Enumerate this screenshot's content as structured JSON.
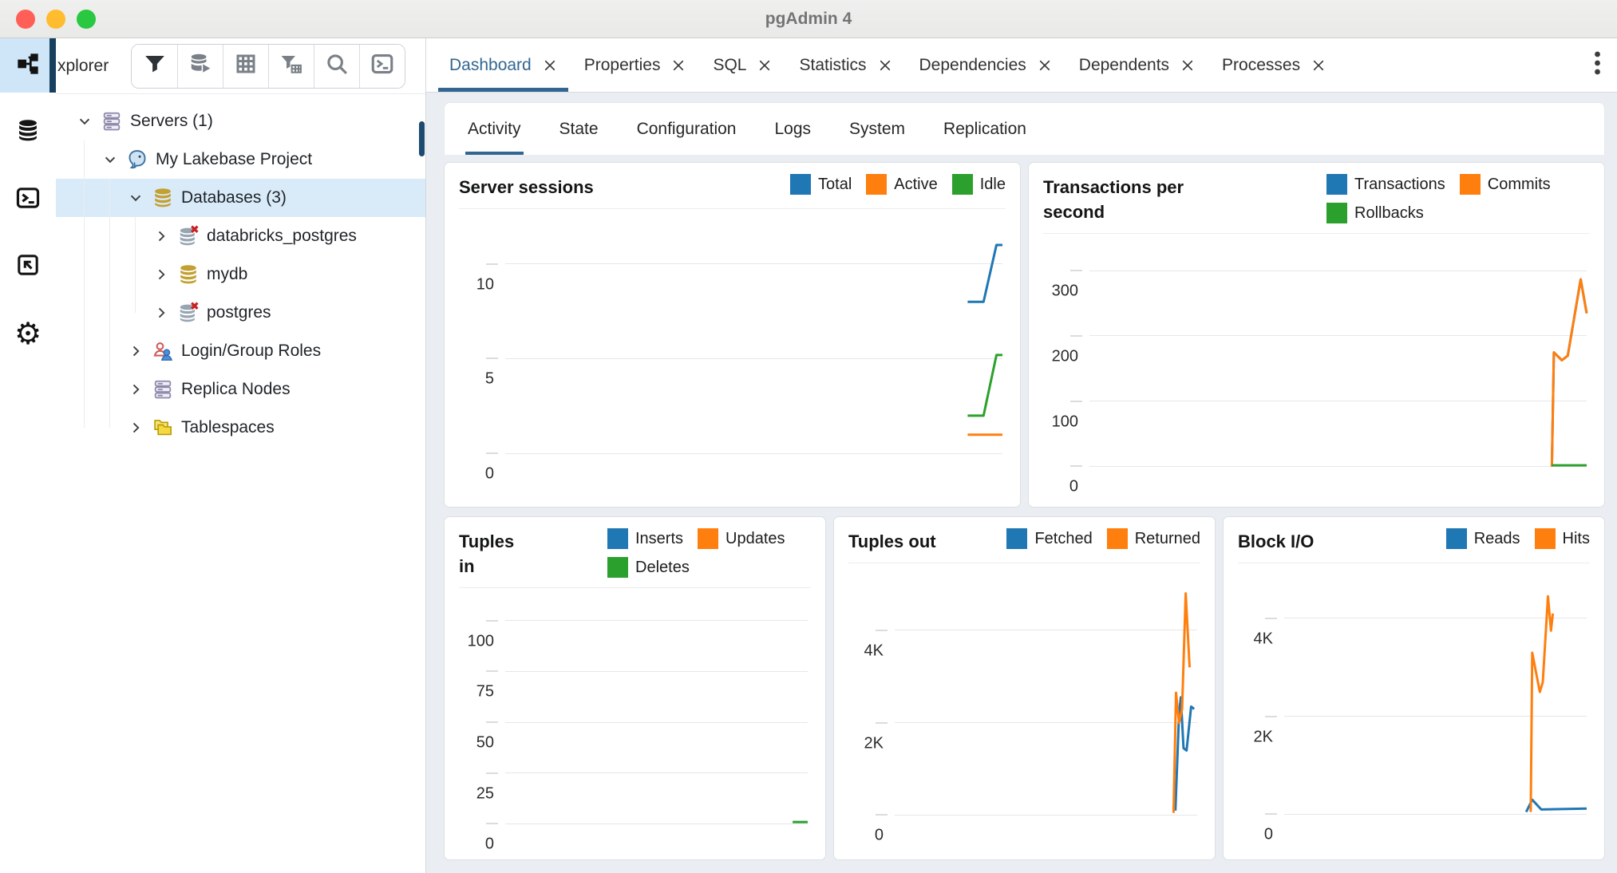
{
  "window": {
    "title": "pgAdmin 4"
  },
  "traffic_lights": {
    "close_color": "#ff5f57",
    "minimize_color": "#febc2e",
    "zoom_color": "#28c840"
  },
  "activity_bar": {
    "items": [
      {
        "icon": "object-explorer-icon",
        "selected": true
      },
      {
        "icon": "database-icon",
        "selected": false
      },
      {
        "icon": "terminal-icon",
        "selected": false
      },
      {
        "icon": "window-switch-icon",
        "selected": false
      }
    ],
    "bottom_items": [
      {
        "icon": "gear-icon"
      }
    ]
  },
  "explorer": {
    "header_label": "xplorer",
    "toolbar": [
      {
        "icon": "filter-icon",
        "active": true
      },
      {
        "icon": "database-play-icon",
        "active": false
      },
      {
        "icon": "grid-icon",
        "active": false
      },
      {
        "icon": "filter-grid-icon",
        "active": false
      },
      {
        "icon": "search-icon",
        "active": false
      },
      {
        "icon": "console-icon",
        "active": false
      }
    ],
    "tree": [
      {
        "label": "Servers (1)",
        "icon": "server-stack-icon",
        "level": 0,
        "expanded": true,
        "selected": false
      },
      {
        "label": "My Lakebase Project",
        "icon": "postgres-elephant-icon",
        "level": 1,
        "expanded": true,
        "selected": false
      },
      {
        "label": "Databases (3)",
        "icon": "database-gold-icon",
        "level": 2,
        "expanded": true,
        "selected": true
      },
      {
        "label": "databricks_postgres",
        "icon": "database-disconnected-icon",
        "level": 3,
        "expanded": false,
        "selected": false
      },
      {
        "label": "mydb",
        "icon": "database-gold-icon",
        "level": 3,
        "expanded": false,
        "selected": false
      },
      {
        "label": "postgres",
        "icon": "database-disconnected-icon",
        "level": 3,
        "expanded": false,
        "selected": false
      },
      {
        "label": "Login/Group Roles",
        "icon": "login-roles-icon",
        "level": 2,
        "expanded": false,
        "selected": false
      },
      {
        "label": "Replica Nodes",
        "icon": "server-stack-icon",
        "level": 2,
        "expanded": false,
        "selected": false
      },
      {
        "label": "Tablespaces",
        "icon": "tablespaces-icon",
        "level": 2,
        "expanded": false,
        "selected": false
      }
    ]
  },
  "tabs": {
    "items": [
      {
        "label": "Dashboard",
        "active": true,
        "closable": true
      },
      {
        "label": "Properties",
        "active": false,
        "closable": true
      },
      {
        "label": "SQL",
        "active": false,
        "closable": true
      },
      {
        "label": "Statistics",
        "active": false,
        "closable": true
      },
      {
        "label": "Dependencies",
        "active": false,
        "closable": true
      },
      {
        "label": "Dependents",
        "active": false,
        "closable": true
      },
      {
        "label": "Processes",
        "active": false,
        "closable": true
      }
    ],
    "overflow_menu_icon": "kebab-menu-icon"
  },
  "subtabs": {
    "items": [
      "Activity",
      "State",
      "Configuration",
      "Logs",
      "System",
      "Replication"
    ],
    "active": "Activity"
  },
  "chart_data": [
    {
      "id": "server-sessions",
      "type": "line",
      "title": "Server sessions",
      "title_max_width": 260,
      "legend_max_width": 420,
      "legend_position": "top-right",
      "grid": true,
      "legend": [
        {
          "label": "Total",
          "color": "#1f77b4"
        },
        {
          "label": "Active",
          "color": "#ff7f0e"
        },
        {
          "label": "Idle",
          "color": "#2ca02c"
        }
      ],
      "yticks": [
        {
          "label": "10",
          "value": 10
        },
        {
          "label": "5",
          "value": 5
        },
        {
          "label": "0",
          "value": 0
        }
      ],
      "ylim": [
        -1.2,
        11.8
      ],
      "series": [
        {
          "name": "Total",
          "color": "#1f77b4",
          "points": [
            [
              0.93,
              8
            ],
            [
              0.962,
              8
            ],
            [
              0.988,
              11
            ],
            [
              1,
              11
            ]
          ]
        },
        {
          "name": "Active",
          "color": "#ff7f0e",
          "points": [
            [
              0.93,
              1
            ],
            [
              1,
              1
            ]
          ]
        },
        {
          "name": "Idle",
          "color": "#2ca02c",
          "points": [
            [
              0.93,
              2
            ],
            [
              0.962,
              2
            ],
            [
              0.988,
              5.2
            ],
            [
              1,
              5.2
            ]
          ]
        }
      ]
    },
    {
      "id": "transactions-per-second",
      "type": "line",
      "title": "Transactions per second",
      "title_max_width": 215,
      "legend_max_width": 330,
      "legend_position": "top-right",
      "grid": true,
      "legend": [
        {
          "label": "Transactions",
          "color": "#1f77b4"
        },
        {
          "label": "Commits",
          "color": "#ff7f0e"
        },
        {
          "label": "Rollbacks",
          "color": "#2ca02c"
        }
      ],
      "yticks": [
        {
          "label": "300",
          "value": 300
        },
        {
          "label": "200",
          "value": 200
        },
        {
          "label": "100",
          "value": 100
        },
        {
          "label": "0",
          "value": 0
        }
      ],
      "ylim": [
        -15,
        325
      ],
      "series": [
        {
          "name": "Transactions",
          "color": "#1f77b4",
          "points": [
            [
              0.93,
              0
            ],
            [
              0.934,
              175
            ],
            [
              0.95,
              163
            ],
            [
              0.962,
              170
            ],
            [
              0.988,
              287
            ],
            [
              1,
              235
            ]
          ]
        },
        {
          "name": "Commits",
          "color": "#ff7f0e",
          "points": [
            [
              0.93,
              0
            ],
            [
              0.934,
              175
            ],
            [
              0.95,
              163
            ],
            [
              0.962,
              170
            ],
            [
              0.988,
              287
            ],
            [
              1,
              235
            ]
          ]
        },
        {
          "name": "Rollbacks",
          "color": "#2ca02c",
          "points": [
            [
              0.93,
              2
            ],
            [
              1,
              2
            ]
          ]
        }
      ]
    },
    {
      "id": "tuples-in",
      "type": "line",
      "title": "Tuples in",
      "title_max_width": 82,
      "legend_max_width": 255,
      "legend_position": "top-right",
      "grid": true,
      "legend": [
        {
          "label": "Inserts",
          "color": "#1f77b4"
        },
        {
          "label": "Updates",
          "color": "#ff7f0e"
        },
        {
          "label": "Deletes",
          "color": "#2ca02c"
        }
      ],
      "yticks": [
        {
          "label": "100",
          "value": 100
        },
        {
          "label": "75",
          "value": 75
        },
        {
          "label": "50",
          "value": 50
        },
        {
          "label": "25",
          "value": 25
        },
        {
          "label": "0",
          "value": 0
        }
      ],
      "ylim": [
        -2.5,
        106
      ],
      "series": [
        {
          "name": "Inserts",
          "color": "#1f77b4",
          "points": []
        },
        {
          "name": "Updates",
          "color": "#ff7f0e",
          "points": []
        },
        {
          "name": "Deletes",
          "color": "#2ca02c",
          "points": [
            [
              0.95,
              1
            ],
            [
              1,
              1
            ]
          ]
        }
      ]
    },
    {
      "id": "tuples-out",
      "type": "line",
      "title": "Tuples out",
      "title_max_width": 135,
      "legend_max_width": 300,
      "legend_position": "top-right",
      "grid": true,
      "legend": [
        {
          "label": "Fetched",
          "color": "#1f77b4"
        },
        {
          "label": "Returned",
          "color": "#ff7f0e"
        }
      ],
      "yticks": [
        {
          "label": "4K",
          "value": 4
        },
        {
          "label": "2K",
          "value": 2
        },
        {
          "label": "0",
          "value": 0
        }
      ],
      "ylim": [
        -0.3,
        5.0
      ],
      "series": [
        {
          "name": "Fetched",
          "color": "#1f77b4",
          "points": [
            [
              0.928,
              0.1
            ],
            [
              0.94,
              2.2
            ],
            [
              0.946,
              2.55
            ],
            [
              0.955,
              1.45
            ],
            [
              0.965,
              1.4
            ],
            [
              0.98,
              2.35
            ],
            [
              0.99,
              2.3
            ]
          ]
        },
        {
          "name": "Returned",
          "color": "#ff7f0e",
          "points": [
            [
              0.922,
              0.05
            ],
            [
              0.93,
              2.65
            ],
            [
              0.94,
              2.0
            ],
            [
              0.95,
              2.3
            ],
            [
              0.962,
              4.8
            ],
            [
              0.975,
              3.2
            ]
          ]
        }
      ]
    },
    {
      "id": "block-io",
      "type": "line",
      "title": "Block I/O",
      "title_max_width": 150,
      "legend_max_width": 260,
      "legend_position": "top-right",
      "grid": true,
      "legend": [
        {
          "label": "Reads",
          "color": "#1f77b4"
        },
        {
          "label": "Hits",
          "color": "#ff7f0e"
        }
      ],
      "yticks": [
        {
          "label": "4K",
          "value": 4
        },
        {
          "label": "2K",
          "value": 2
        },
        {
          "label": "0",
          "value": 0
        }
      ],
      "ylim": [
        -0.3,
        4.7
      ],
      "series": [
        {
          "name": "Reads",
          "color": "#1f77b4",
          "points": [
            [
              0.8,
              0.05
            ],
            [
              0.82,
              0.3
            ],
            [
              0.85,
              0.1
            ],
            [
              1,
              0.12
            ]
          ]
        },
        {
          "name": "Hits",
          "color": "#ff7f0e",
          "points": [
            [
              0.815,
              0.05
            ],
            [
              0.82,
              3.3
            ],
            [
              0.845,
              2.5
            ],
            [
              0.855,
              2.7
            ],
            [
              0.872,
              4.45
            ],
            [
              0.882,
              3.75
            ],
            [
              0.888,
              4.1
            ]
          ]
        }
      ]
    }
  ]
}
